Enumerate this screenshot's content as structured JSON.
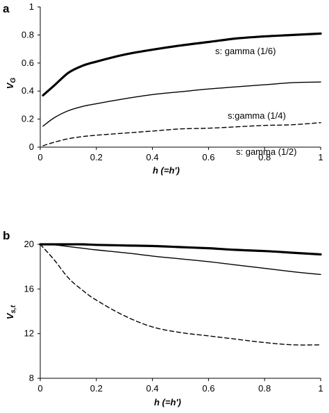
{
  "chart_data": [
    {
      "type": "line",
      "panel_label": "a",
      "xlabel": "h (=h')",
      "ylabel": "V_G",
      "xlim": [
        0,
        1
      ],
      "ylim": [
        0,
        1
      ],
      "x_ticks": [
        "0",
        "0.2",
        "0.4",
        "0.6",
        "0.8",
        "1"
      ],
      "y_ticks": [
        "0",
        "0.2",
        "0.4",
        "0.6",
        "0.8",
        "1"
      ],
      "grid": false,
      "legend": "none",
      "annotations": [
        "s: gamma (1/6)",
        "s:gamma (1/4)",
        "s: gamma (1/2)"
      ],
      "x": [
        0.01,
        0.05,
        0.1,
        0.15,
        0.2,
        0.3,
        0.4,
        0.5,
        0.6,
        0.7,
        0.8,
        0.9,
        1.0
      ],
      "series": [
        {
          "style": "thick",
          "values": [
            0.37,
            0.44,
            0.53,
            0.58,
            0.61,
            0.66,
            0.695,
            0.725,
            0.75,
            0.775,
            0.79,
            0.8,
            0.81
          ]
        },
        {
          "style": "thin",
          "values": [
            0.15,
            0.21,
            0.26,
            0.29,
            0.31,
            0.345,
            0.375,
            0.395,
            0.415,
            0.43,
            0.445,
            0.46,
            0.465
          ]
        },
        {
          "style": "dashed",
          "values": [
            0.01,
            0.035,
            0.06,
            0.075,
            0.085,
            0.1,
            0.115,
            0.13,
            0.135,
            0.145,
            0.155,
            0.16,
            0.175
          ]
        }
      ]
    },
    {
      "type": "line",
      "panel_label": "b",
      "xlabel": "h (=h')",
      "ylabel": "V_s,t",
      "xlim": [
        0,
        1
      ],
      "ylim": [
        8,
        20
      ],
      "x_ticks": [
        "0",
        "0.2",
        "0.4",
        "0.6",
        "0.8",
        "1"
      ],
      "y_ticks": [
        "8",
        "12",
        "16",
        "20"
      ],
      "grid": false,
      "legend": "none",
      "x": [
        0,
        0.05,
        0.1,
        0.15,
        0.2,
        0.3,
        0.4,
        0.5,
        0.6,
        0.7,
        0.8,
        0.9,
        1.0
      ],
      "series": [
        {
          "style": "thick",
          "values": [
            20.0,
            20.0,
            20.0,
            20.0,
            19.95,
            19.9,
            19.85,
            19.75,
            19.65,
            19.5,
            19.4,
            19.25,
            19.1
          ]
        },
        {
          "style": "thin",
          "values": [
            20.0,
            19.95,
            19.8,
            19.65,
            19.5,
            19.25,
            18.95,
            18.7,
            18.45,
            18.15,
            17.85,
            17.55,
            17.3
          ]
        },
        {
          "style": "dashed",
          "values": [
            20.0,
            18.6,
            17.0,
            15.9,
            15.0,
            13.6,
            12.6,
            12.1,
            11.8,
            11.5,
            11.2,
            11.0,
            11.0
          ]
        }
      ]
    }
  ]
}
